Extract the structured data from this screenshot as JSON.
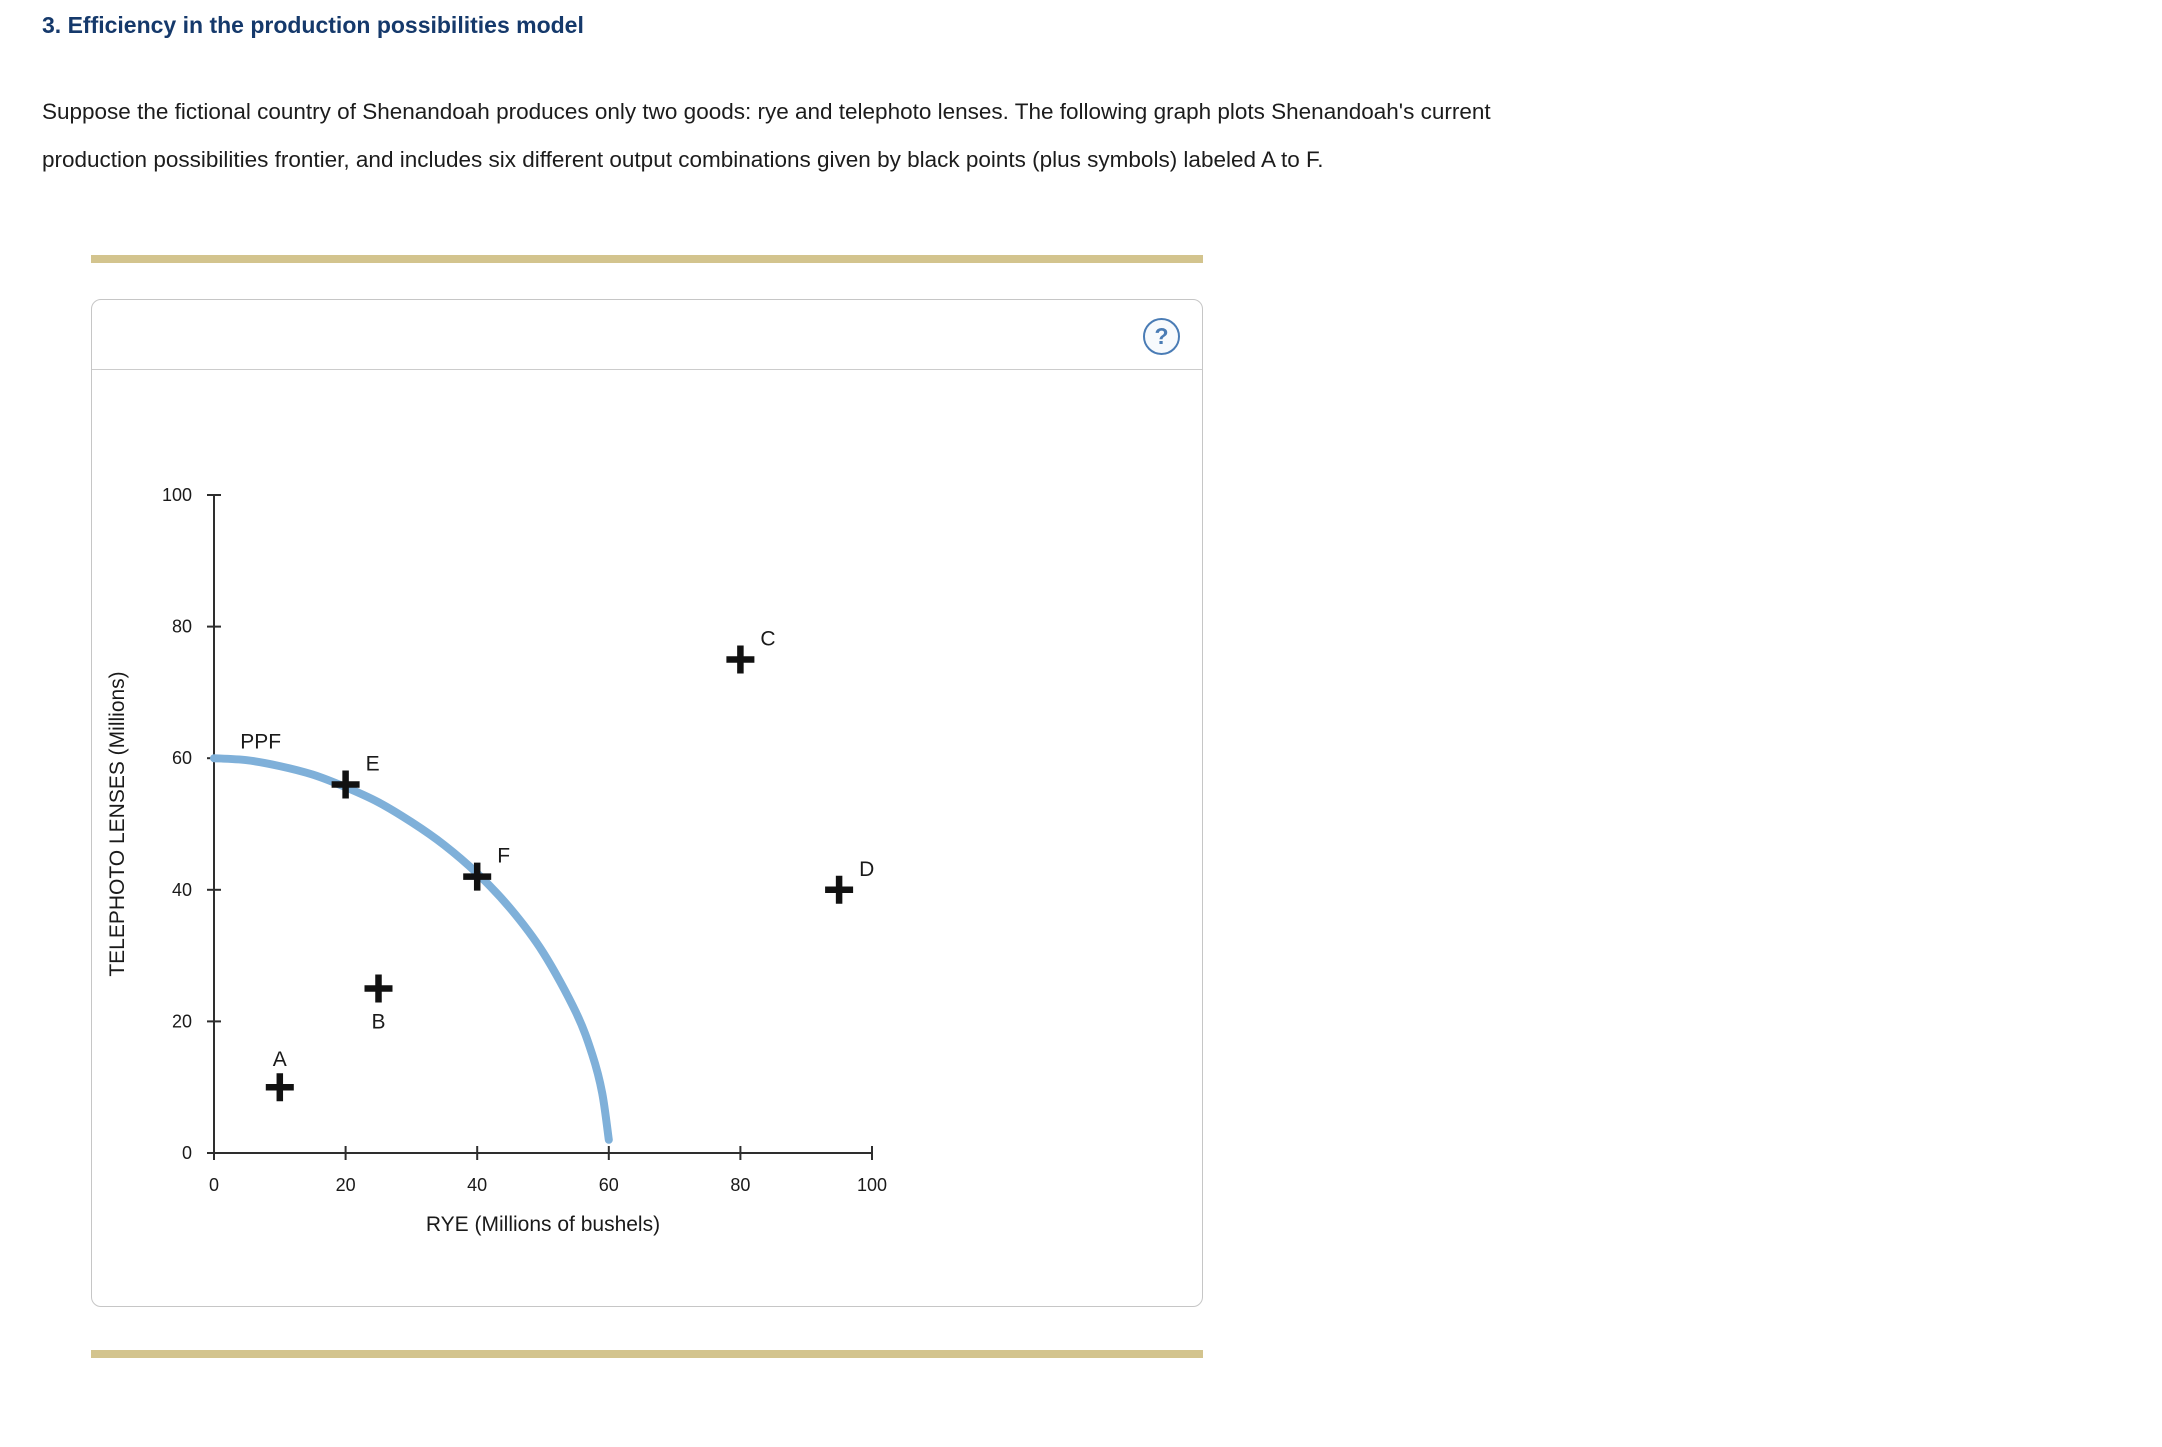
{
  "page": {
    "title": "3. Efficiency in the production possibilities model",
    "intro_lines": [
      "Suppose the fictional country of Shenandoah produces only two goods: rye and telephoto lenses. The following graph plots Shenandoah's current",
      "production possibilities frontier, and includes six different output combinations given by black points (plus symbols) labeled A to F."
    ]
  },
  "panel": {
    "help_icon": "?"
  },
  "colors": {
    "heading": "#15396b",
    "accent_bar": "#d3c48e",
    "help_icon": "#4a7cb5",
    "ppf_curve": "#7fb0d9",
    "axis": "#2e2e2e",
    "point": "#111111"
  },
  "chart_data": {
    "type": "scatter",
    "title": "",
    "xlabel": "RYE (Millions of bushels)",
    "ylabel": "TELEPHOTO LENSES (Millions)",
    "xlim": [
      0,
      100
    ],
    "ylim": [
      0,
      100
    ],
    "xticks": [
      0,
      20,
      40,
      60,
      80,
      100
    ],
    "yticks": [
      0,
      20,
      40,
      60,
      80,
      100
    ],
    "grid": false,
    "curve": {
      "label": "PPF",
      "label_at": [
        4,
        61.5
      ],
      "x_intercept": 60,
      "y_intercept": 60,
      "points": [
        [
          0,
          60
        ],
        [
          5,
          59.7
        ],
        [
          10,
          58.8
        ],
        [
          15,
          57.5
        ],
        [
          20,
          55.6
        ],
        [
          25,
          53.3
        ],
        [
          30,
          50.3
        ],
        [
          35,
          46.8
        ],
        [
          40,
          42.5
        ],
        [
          45,
          37.2
        ],
        [
          50,
          30.5
        ],
        [
          55,
          21.4
        ],
        [
          57.5,
          14.9
        ],
        [
          59,
          9.1
        ],
        [
          60,
          2
        ]
      ]
    },
    "points": [
      {
        "label": "A",
        "x": 10,
        "y": 10,
        "label_pos": "above"
      },
      {
        "label": "B",
        "x": 25,
        "y": 25,
        "label_pos": "below"
      },
      {
        "label": "C",
        "x": 80,
        "y": 75,
        "label_pos": "upper-right"
      },
      {
        "label": "D",
        "x": 95,
        "y": 40,
        "label_pos": "upper-right"
      },
      {
        "label": "E",
        "x": 20,
        "y": 56,
        "label_pos": "upper-right"
      },
      {
        "label": "F",
        "x": 40,
        "y": 42,
        "label_pos": "upper-right"
      }
    ]
  }
}
